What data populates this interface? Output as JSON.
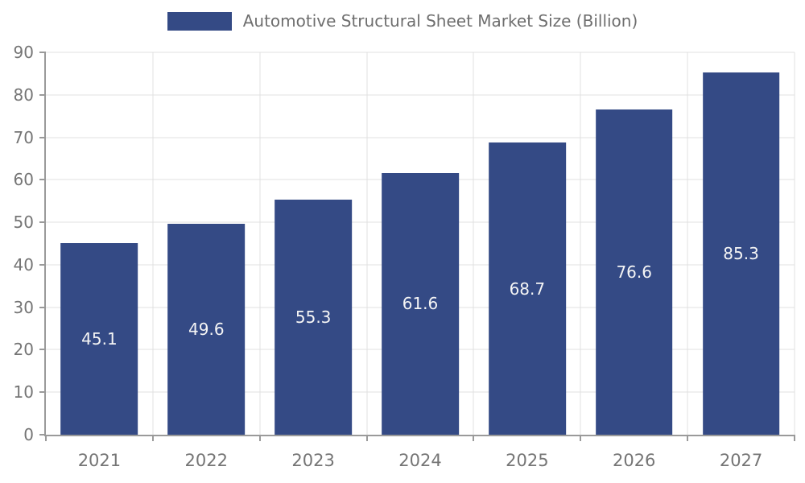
{
  "chart_data": {
    "type": "bar",
    "title": "Automotive Structural Sheet Market Size (Billion)",
    "categories": [
      "2021",
      "2022",
      "2023",
      "2024",
      "2025",
      "2026",
      "2027"
    ],
    "values": [
      45.1,
      49.6,
      55.3,
      61.6,
      68.7,
      76.6,
      85.3
    ],
    "xlabel": "",
    "ylabel": "",
    "ylim": [
      0,
      90
    ],
    "yticks": [
      0,
      10,
      20,
      30,
      40,
      50,
      60,
      70,
      80,
      90
    ],
    "grid": "on",
    "legend_position": "top-center",
    "bar_color": "#344a85",
    "label_color": "#f5f5f5",
    "axis_text_color": "#757575",
    "bar_width_ratio": 0.72
  }
}
